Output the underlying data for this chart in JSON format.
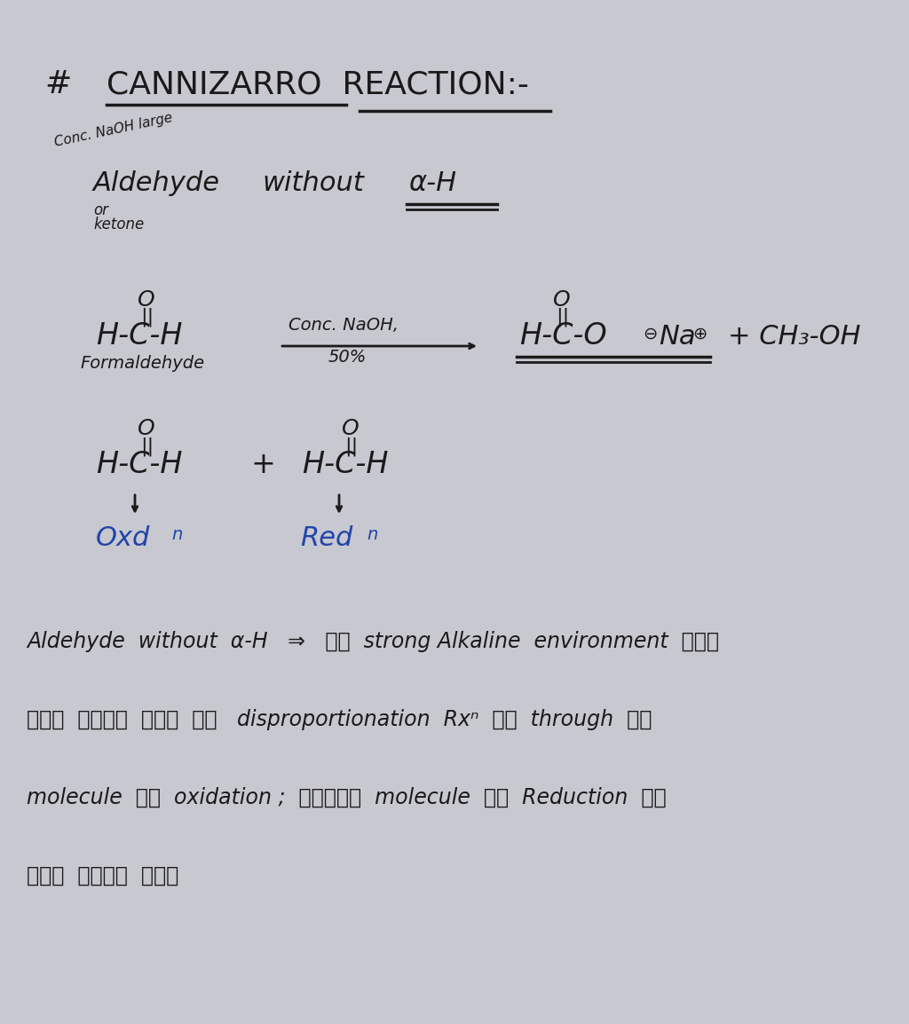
{
  "bg_color": "#c8c8d0",
  "text_color": "#1a1a1a",
  "blue_color": "#2244aa",
  "title_hash": "#",
  "title_text": "CANNIZARRO  REACTION:-",
  "conc_naoh_small": "Conc. NaOH large",
  "aldehyde_word": "Aldehyde",
  "without_word": "without",
  "alpha_h": "α-H",
  "or_text": "or",
  "ketone_text": "ketone",
  "hch_text": "H-C-H",
  "formaldehyde_text": "Formaldehyde",
  "conc_naoh_arrow": "Conc. NaOH,",
  "fifty_pct": "50%",
  "product_hco": "H-C-O",
  "product_na": "Na",
  "plus_ch3oh": "+ CH₃-OH",
  "o_symbol": "O",
  "double_bond": "||",
  "oxd_text": "Oxd",
  "red_text": "Red",
  "superscript_n": "n",
  "para_line1": "Aldehyde  without  α-H   ⇒   जब  strong Alkaline  environment  में",
  "para_line2": "रखे  जाते  हैं  तो   disproportionation  Rxⁿ  के  through  एक",
  "para_line3": "molecule  का  oxidation ;  दूसरे  molecule  के  Reduction  के",
  "para_line4": "साथ  होता  है।"
}
